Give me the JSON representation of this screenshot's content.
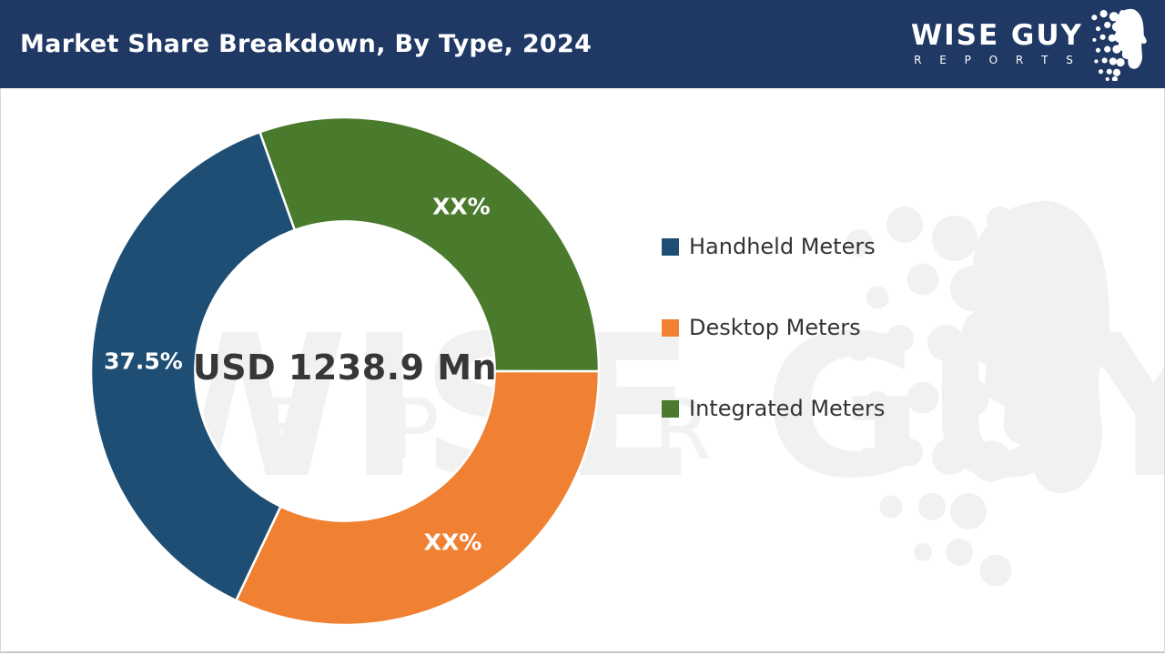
{
  "header": {
    "title": "Market Share Breakdown, By Type, 2024",
    "bg_color": "#1f3864",
    "logo": {
      "line1": "WISE GUY",
      "line2": "R E P O R T S"
    }
  },
  "watermark": {
    "line1": "WISE GUY",
    "line2": "E P O R"
  },
  "chart_data": {
    "type": "pie",
    "subtype": "donut",
    "title": "Market Share Breakdown, By Type, 2024",
    "center_label": "USD 1238.9 Mn",
    "start_angle_deg": -19.6,
    "inner_radius_ratio": 0.59,
    "legend_position": "right",
    "segments_draw_order": [
      {
        "name": "Integrated Meters",
        "value_pct": 30.45,
        "label": "XX%",
        "color": "#4a7a2c"
      },
      {
        "name": "Desktop Meters",
        "value_pct": 32.05,
        "label": "XX%",
        "color": "#f08133"
      },
      {
        "name": "Handheld Meters",
        "value_pct": 37.5,
        "label": "37.5%",
        "color": "#1f4e74"
      }
    ],
    "legend": [
      {
        "label": "Handheld Meters",
        "color": "#1f4e74"
      },
      {
        "label": "Desktop Meters",
        "color": "#f08133"
      },
      {
        "label": "Integrated Meters",
        "color": "#4a7a2c"
      }
    ]
  }
}
